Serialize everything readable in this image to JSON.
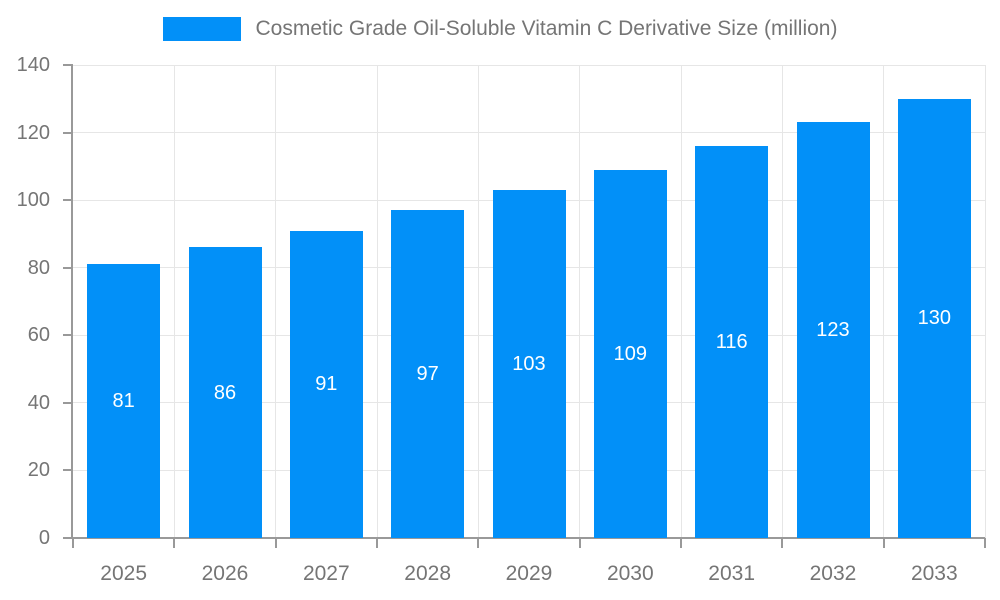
{
  "chart_data": {
    "type": "bar",
    "title": "Cosmetic Grade Oil-Soluble Vitamin C Derivative Size (million)",
    "categories": [
      "2025",
      "2026",
      "2027",
      "2028",
      "2029",
      "2030",
      "2031",
      "2032",
      "2033"
    ],
    "values": [
      81,
      86,
      91,
      97,
      103,
      109,
      116,
      123,
      130
    ],
    "xlabel": "",
    "ylabel": "",
    "ylim": [
      0,
      140
    ],
    "y_ticks": [
      0,
      20,
      40,
      60,
      80,
      100,
      120,
      140
    ],
    "grid": true,
    "legend_position": "top",
    "colors": {
      "bar": "#0290f8",
      "grid": "#e6e6e6",
      "axis": "#999999",
      "tick_text": "#757575",
      "bar_label_text": "#ffffff"
    }
  }
}
